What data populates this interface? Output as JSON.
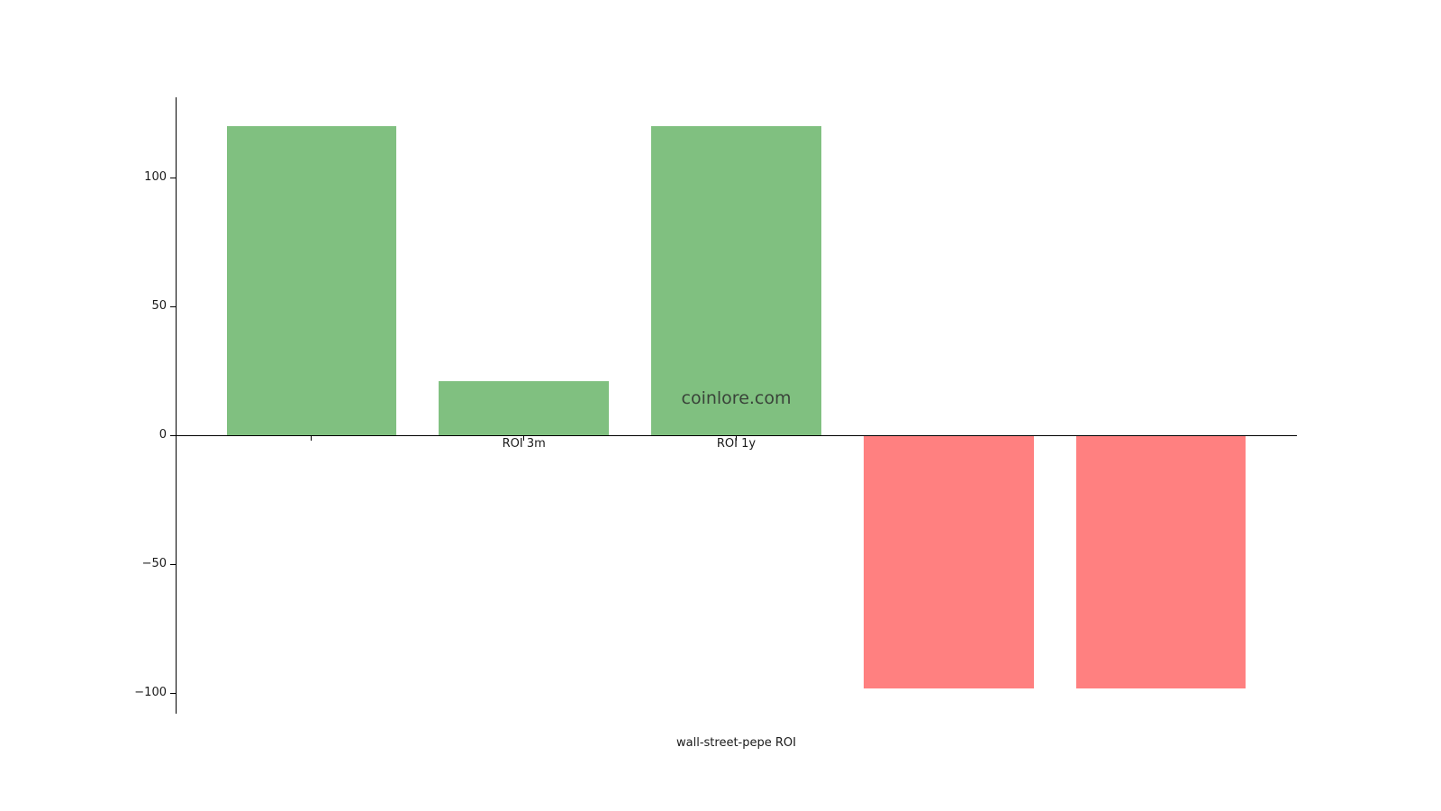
{
  "page": {
    "background": "#ffffff"
  },
  "watermark": {
    "text": "coinlore.com"
  },
  "chart_data": {
    "type": "bar",
    "title": "",
    "xlabel": "wall-street-pepe ROI",
    "ylabel": "",
    "categories": [
      "",
      "ROI 3m",
      "ROI 1y",
      "",
      ""
    ],
    "values": [
      120,
      21,
      120,
      -98,
      -98
    ],
    "positive_color": "#80c080",
    "negative_color": "#ff8080",
    "axis_color": "#000000",
    "y_ticks": [
      100,
      50,
      0,
      -50,
      -100
    ],
    "y_tick_labels": [
      "100",
      "50",
      "0",
      "−50",
      "−100"
    ],
    "ylim": [
      -108,
      131
    ],
    "grid": false,
    "legend": false,
    "x_tick_labels_hidden_by_bars": [
      "",
      ""
    ]
  }
}
